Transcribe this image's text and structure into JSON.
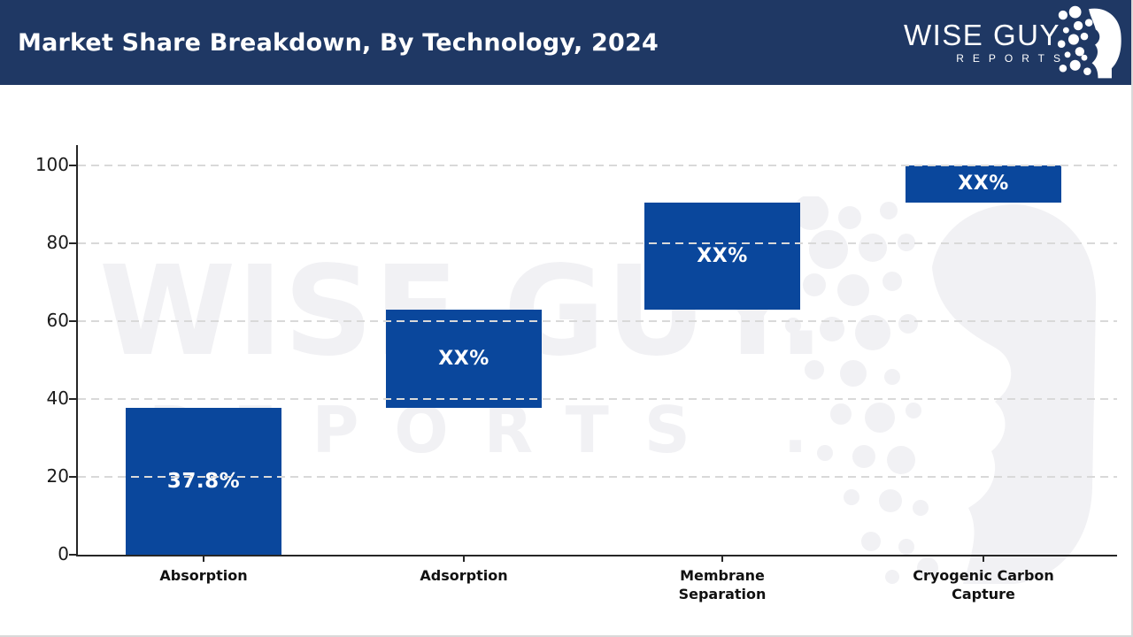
{
  "header": {
    "title": "Market Share Breakdown, By Technology, 2024",
    "logo": {
      "line1": "WISE GUY",
      "line2": "REPORTS"
    }
  },
  "watermark": {
    "line1": "WISE GUY.",
    "line2": "REPORTS ."
  },
  "chart_data": {
    "type": "bar",
    "subtype": "floating-waterfall",
    "title": "Market Share Breakdown, By Technology, 2024",
    "categories": [
      "Absorption",
      "Adsorption",
      "Membrane Separation",
      "Cryogenic Carbon Capture"
    ],
    "category_label_lines": [
      [
        "Absorption"
      ],
      [
        "Adsorption"
      ],
      [
        "Membrane",
        "Separation"
      ],
      [
        "Cryogenic Carbon",
        "Capture"
      ]
    ],
    "segments": [
      {
        "category": "Absorption",
        "start": 0,
        "end": 37.8,
        "label": "37.8%"
      },
      {
        "category": "Adsorption",
        "start": 37.8,
        "end": 63,
        "label": "XX%"
      },
      {
        "category": "Membrane Separation",
        "start": 63,
        "end": 90.5,
        "label": "XX%"
      },
      {
        "category": "Cryogenic Carbon Capture",
        "start": 90.5,
        "end": 100,
        "label": "XX%"
      }
    ],
    "ylim": [
      0,
      100
    ],
    "yticks": [
      0,
      20,
      40,
      60,
      80,
      100
    ],
    "grid": "horizontal-dashed",
    "legend": "none",
    "bar_color": "#0a479c",
    "bar_label_color": "#ffffff"
  },
  "colors": {
    "header_bg": "#1f3864",
    "bar": "#0a479c",
    "grid": "#d9d9d9",
    "axis": "#262626",
    "watermark": "#f1f1f4"
  }
}
